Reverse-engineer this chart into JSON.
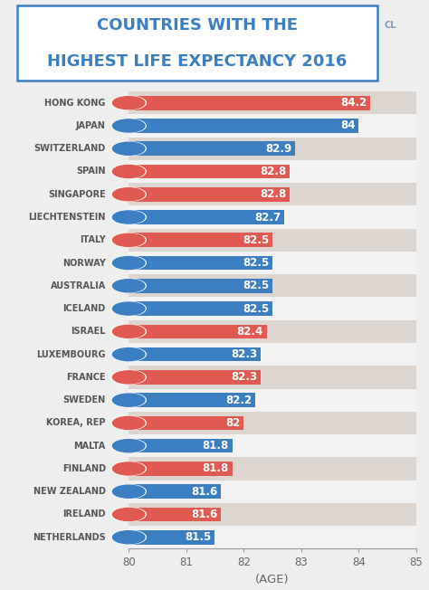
{
  "title_line1": "COUNTRIES WITH THE",
  "title_line2": "HIGHEST LIFE EXPECTANCY 2016",
  "xlabel": "(AGE)",
  "xlim": [
    80,
    85
  ],
  "xticks": [
    80,
    81,
    82,
    83,
    84,
    85
  ],
  "countries": [
    "HONG KONG",
    "JAPAN",
    "SWITZERLAND",
    "SPAIN",
    "SINGAPORE",
    "LIECHTENSTEIN",
    "ITALY",
    "NORWAY",
    "AUSTRALIA",
    "ICELAND",
    "ISRAEL",
    "LUXEMBOURG",
    "FRANCE",
    "SWEDEN",
    "KOREA, REP",
    "MALTA",
    "FINLAND",
    "NEW ZEALAND",
    "IRELAND",
    "NETHERLANDS"
  ],
  "values": [
    84.2,
    84,
    82.9,
    82.8,
    82.8,
    82.7,
    82.5,
    82.5,
    82.5,
    82.5,
    82.4,
    82.3,
    82.3,
    82.2,
    82,
    81.8,
    81.8,
    81.6,
    81.6,
    81.5
  ],
  "bar_colors": [
    "#e05a52",
    "#3b7ec2",
    "#3b7ec2",
    "#e05a52",
    "#e05a52",
    "#3b7ec2",
    "#e05a52",
    "#3b7ec2",
    "#3b7ec2",
    "#3b7ec2",
    "#e05a52",
    "#3b7ec2",
    "#e05a52",
    "#3b7ec2",
    "#e05a52",
    "#3b7ec2",
    "#e05a52",
    "#3b7ec2",
    "#e05a52",
    "#3b7ec2"
  ],
  "bg_color": "#eeeeee",
  "even_row_color": "#ddd5d0",
  "odd_row_color": "#f2f2f2",
  "title_color": "#3b7ec2",
  "title_border_color": "#3b7ec2",
  "label_fontsize": 7.0,
  "value_fontsize": 8.5,
  "title_fontsize_line1": 13,
  "title_fontsize_line2": 13
}
